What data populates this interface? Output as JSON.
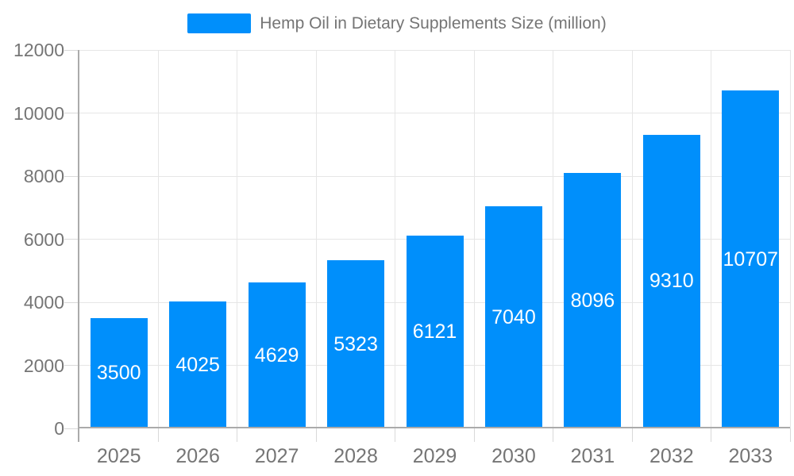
{
  "legend": {
    "label": "Hemp Oil in Dietary Supplements Size (million)"
  },
  "chart_data": {
    "type": "bar",
    "title": "Hemp Oil in Dietary Supplements Size (million)",
    "series_name": "Hemp Oil in Dietary Supplements Size (million)",
    "categories": [
      "2025",
      "2026",
      "2027",
      "2028",
      "2029",
      "2030",
      "2031",
      "2032",
      "2033"
    ],
    "values": [
      3500,
      4025,
      4629,
      5323,
      6121,
      7040,
      8096,
      9310,
      10707
    ],
    "xlabel": "",
    "ylabel": "",
    "ylim": [
      0,
      12000
    ],
    "yticks": [
      0,
      2000,
      4000,
      6000,
      8000,
      10000,
      12000
    ],
    "grid": true,
    "legend_position": "top",
    "value_label_position": "inside-center",
    "colors": {
      "bar": "#008FFB",
      "value_label": "#FFFFFF",
      "axis_label": "#757575",
      "gridline": "#E6E6E6",
      "tick": "#D9D9D9",
      "axis_line": "#ABABAB",
      "background": "#FFFFFF"
    }
  }
}
